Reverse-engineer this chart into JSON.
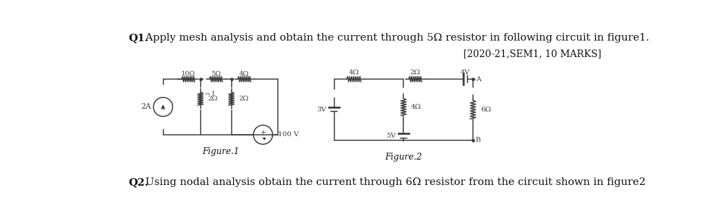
{
  "title_bold": "Q1.",
  "title_normal": " Apply mesh analysis and obtain the current through 5Ω resistor in following circuit in figure1.",
  "marks_text": "[2020-21,SEM1, 10 MARKS]",
  "fig1_label": "Figure.1",
  "fig2_label": "Figure.2",
  "q2_bold": "Q2.",
  "q2_normal": " Using nodal analysis obtain the current through 6Ω resistor from the circuit shown in figure2",
  "bg_color": "#ffffff",
  "text_color": "#1a1a1a",
  "circuit_color": "#3a3a3a"
}
